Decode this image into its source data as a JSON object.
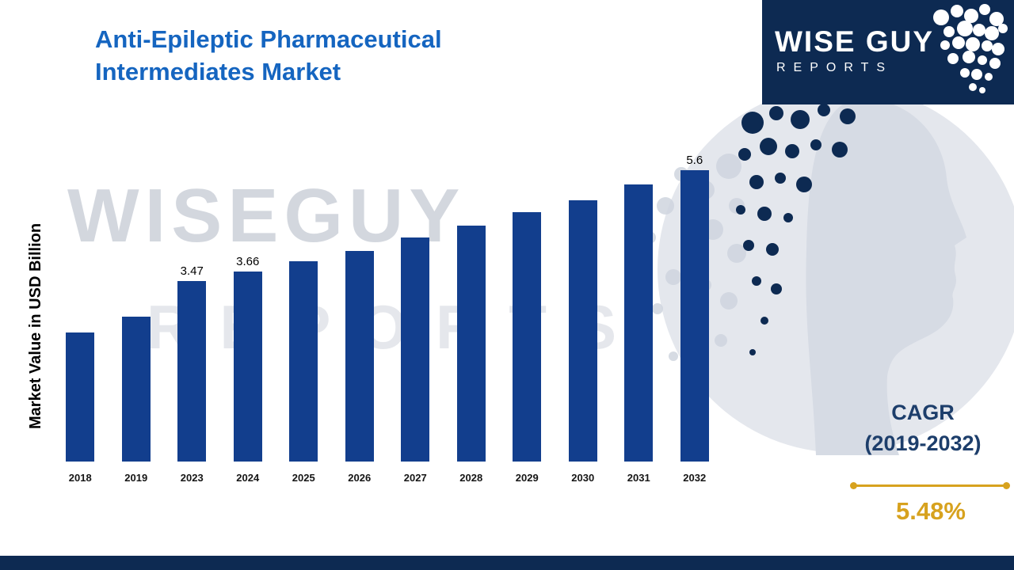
{
  "title": "Anti-Epileptic Pharmaceutical Intermediates Market",
  "y_axis_label": "Market Value in USD Billion",
  "watermark": {
    "line1": "WISEGUY",
    "line2": "REPORTS"
  },
  "logo": {
    "name": "WISE GUY",
    "sub": "REPORTS"
  },
  "cagr": {
    "label": "CAGR",
    "range": "(2019-2032)",
    "value": "5.48%"
  },
  "colors": {
    "bar": "#123e8d",
    "title": "#1565c0",
    "navy": "#0d2a52",
    "gold": "#d7a21e"
  },
  "chart_data": {
    "type": "bar",
    "title": "Anti-Epileptic Pharmaceutical Intermediates Market",
    "ylabel": "Market Value in USD Billion",
    "xlabel": "",
    "categories": [
      "2018",
      "2019",
      "2023",
      "2024",
      "2025",
      "2026",
      "2027",
      "2028",
      "2029",
      "2030",
      "2031",
      "2032"
    ],
    "values": [
      2.48,
      2.78,
      3.47,
      3.66,
      3.85,
      4.05,
      4.3,
      4.53,
      4.8,
      5.03,
      5.32,
      5.6
    ],
    "bar_labels": [
      "",
      "",
      "3.47",
      "3.66",
      "",
      "",
      "",
      "",
      "",
      "",
      "",
      "5.6"
    ],
    "ylim": [
      0,
      6
    ],
    "grid": false,
    "legend": false
  }
}
